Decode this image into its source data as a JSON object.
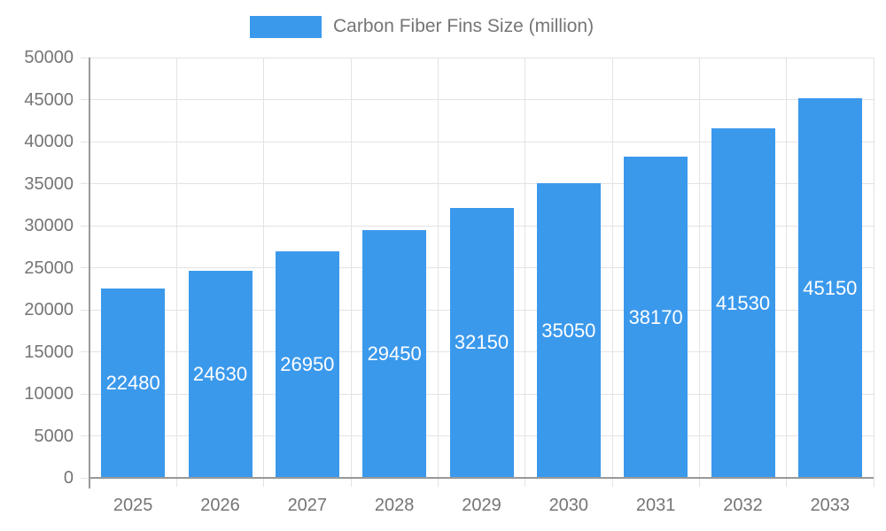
{
  "legend": {
    "label": "Carbon Fiber Fins Size (million)"
  },
  "colors": {
    "bar": "#3b99ec",
    "grid": "#e3e3e3",
    "axis": "#999999",
    "tick_label": "#757575",
    "bar_value_label": "#ffffff",
    "background": "#ffffff"
  },
  "chart_data": {
    "type": "bar",
    "title": "Carbon Fiber Fins Size (million)",
    "categories": [
      "2025",
      "2026",
      "2027",
      "2028",
      "2029",
      "2030",
      "2031",
      "2032",
      "2033"
    ],
    "series": [
      {
        "name": "Carbon Fiber Fins Size (million)",
        "values": [
          22480,
          24630,
          26950,
          29450,
          32150,
          35050,
          38170,
          41530,
          45150
        ]
      }
    ],
    "xlabel": "",
    "ylabel": "",
    "ylim": [
      0,
      50000
    ],
    "yticks": [
      0,
      5000,
      10000,
      15000,
      20000,
      25000,
      30000,
      35000,
      40000,
      45000,
      50000
    ],
    "grid": true,
    "legend_position": "top",
    "bar_value_labels": "inside-center"
  }
}
